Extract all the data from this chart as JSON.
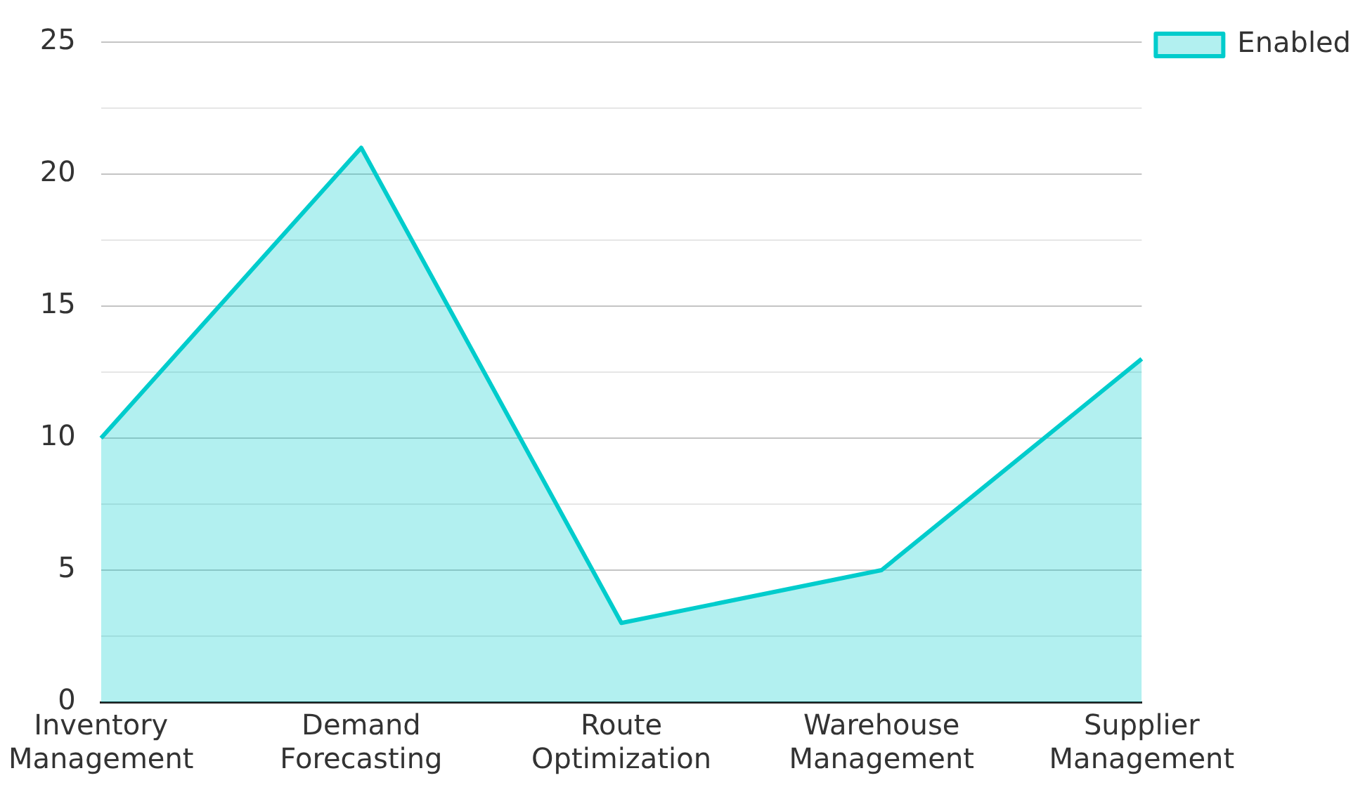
{
  "chart_data": {
    "type": "area",
    "categories": [
      "Inventory Management",
      "Demand Forecasting",
      "Route Optimization",
      "Warehouse Management",
      "Supplier Management"
    ],
    "series": [
      {
        "name": "Enabled",
        "color": "#00cccc",
        "values": [
          10,
          21,
          3,
          5,
          13
        ]
      }
    ],
    "ylim": [
      0,
      25
    ],
    "yticks": [
      0,
      {
        "value": 2.5,
        "label": null
      },
      5,
      {
        "value": 7.5,
        "label": null
      },
      10,
      {
        "value": 12.5,
        "label": null
      },
      15,
      {
        "value": 17.5,
        "label": null
      },
      20,
      {
        "value": 22.5,
        "label": null
      },
      25
    ],
    "grid": "y",
    "legend": "top right"
  }
}
